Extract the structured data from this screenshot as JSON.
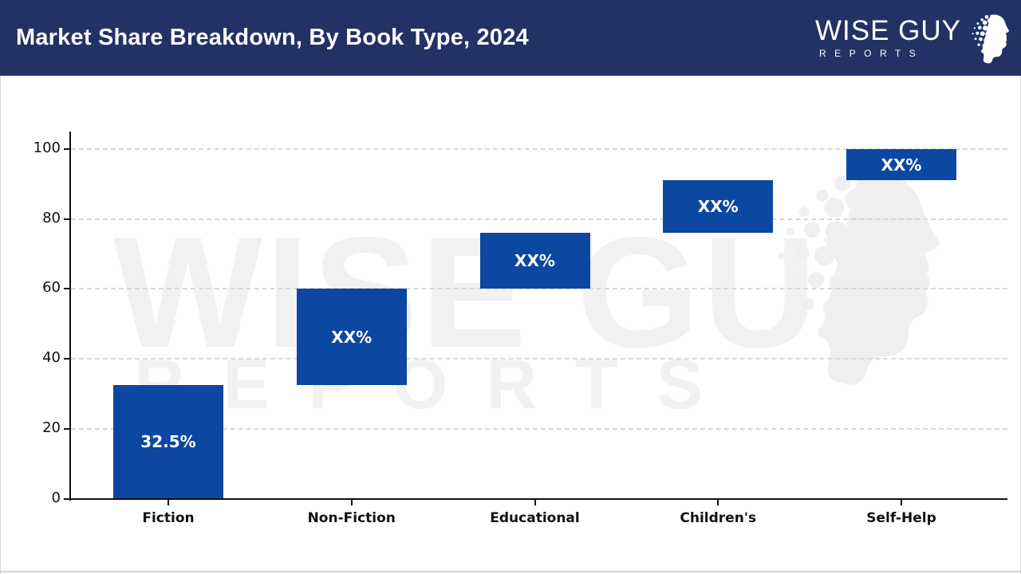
{
  "header": {
    "title": "Market Share Breakdown, By Book Type, 2024",
    "bg_color": "#223264",
    "logo": {
      "wordmark": "WISE GUY",
      "subtitle": "REPORTS",
      "icon": "dotted-head-profile-icon",
      "color": "#ffffff"
    }
  },
  "watermark": {
    "wordmark": "WISE GUY",
    "subtitle": "REPORTS",
    "color": "#f1f1f3"
  },
  "chart_data": {
    "type": "bar",
    "subtype": "waterfall",
    "title": "Market Share Breakdown, By Book Type, 2024",
    "categories": [
      "Fiction",
      "Non-Fiction",
      "Educational",
      "Children's",
      "Self-Help"
    ],
    "segments": [
      {
        "category": "Fiction",
        "start": 0,
        "end": 32.5,
        "label": "32.5%"
      },
      {
        "category": "Non-Fiction",
        "start": 32.5,
        "end": 60,
        "label": "XX%"
      },
      {
        "category": "Educational",
        "start": 60,
        "end": 76,
        "label": "XX%"
      },
      {
        "category": "Children's",
        "start": 76,
        "end": 91,
        "label": "XX%"
      },
      {
        "category": "Self-Help",
        "start": 91,
        "end": 100,
        "label": "XX%"
      }
    ],
    "y_ticks": [
      0,
      20,
      40,
      60,
      80,
      100
    ],
    "ylim": [
      0,
      105
    ],
    "xlabel": "",
    "ylabel": "",
    "grid": "horizontal-dashed",
    "legend": "none",
    "bar_color": "#0c47a1",
    "bar_label_color": "#ffffff",
    "axis_color": "#111111",
    "grid_color": "#d9d9d9",
    "tick_label_color": "#111111"
  }
}
